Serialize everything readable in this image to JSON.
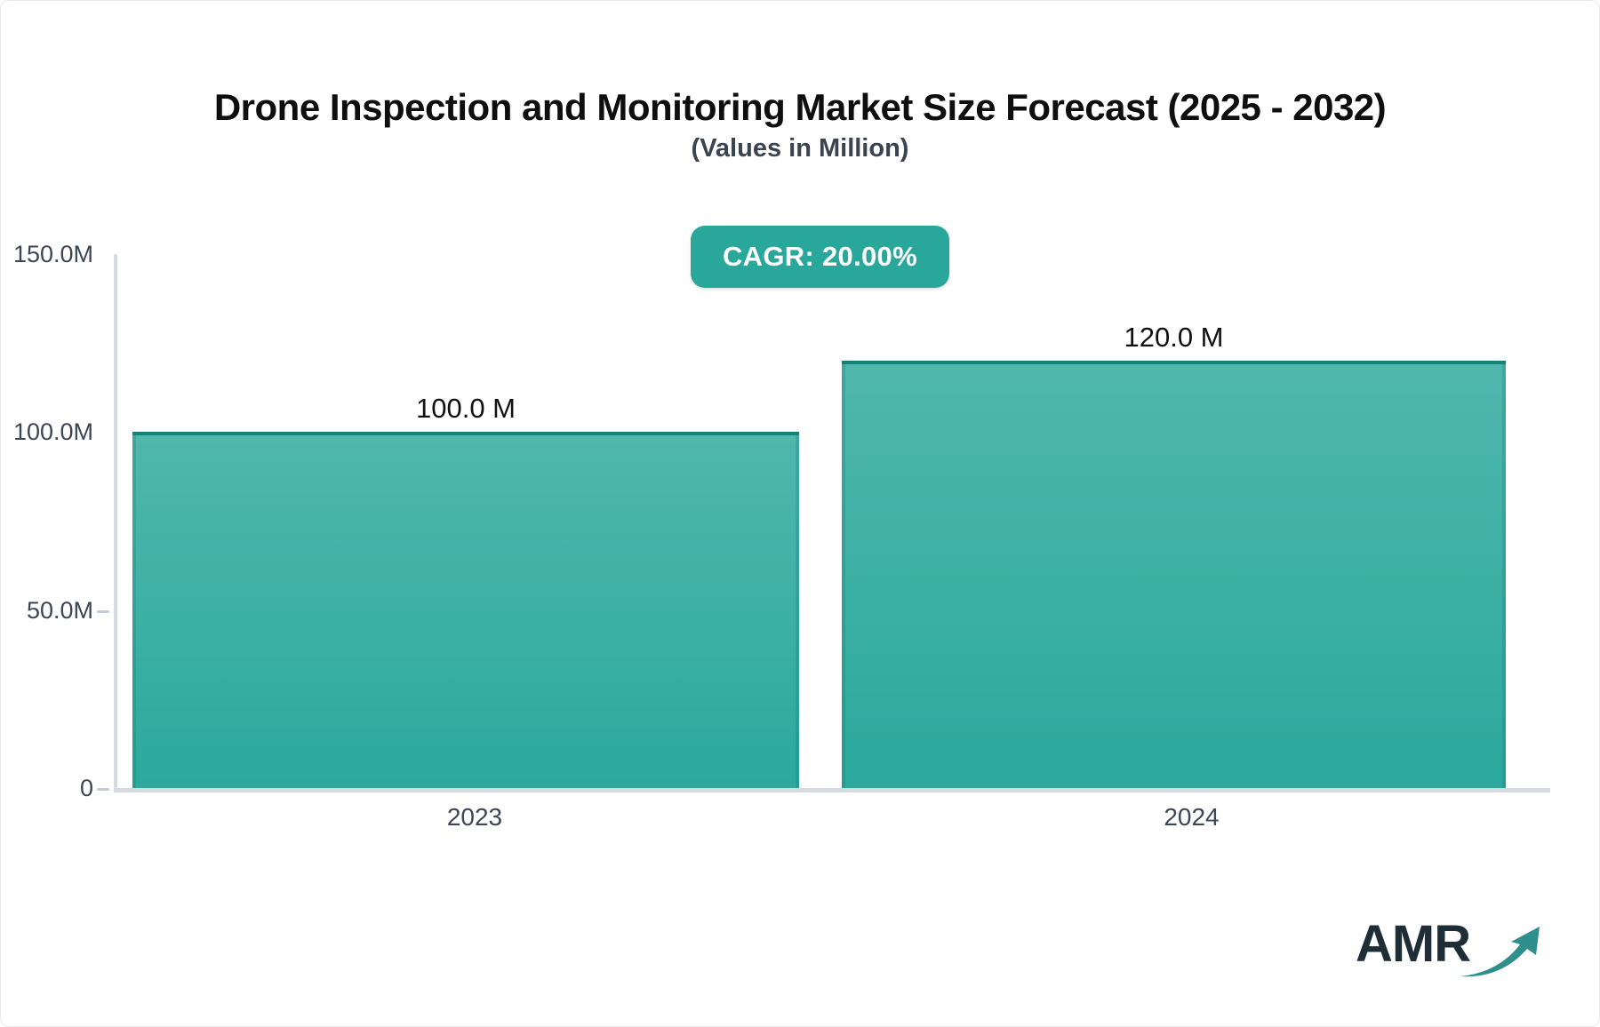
{
  "header": {
    "title": "Drone Inspection and Monitoring Market Size Forecast (2025 - 2032)",
    "subtitle": "(Values in Million)",
    "cagr_badge": "CAGR: 20.00%"
  },
  "chart_data": {
    "type": "bar",
    "title": "Drone Inspection and Monitoring Market Size Forecast (2025 - 2032)",
    "subtitle": "(Values in Million)",
    "categories": [
      "2023",
      "2024"
    ],
    "values": [
      100.0,
      120.0
    ],
    "value_labels": [
      "100.0 M",
      "120.0 M"
    ],
    "unit": "Million",
    "cagr_percent": 20.0,
    "ylim": [
      0,
      150
    ],
    "y_tick_labels": [
      "150.0M",
      "100.0M",
      "50.0M",
      "0"
    ],
    "y_tick_values": [
      150,
      100,
      50,
      0
    ],
    "grid": false,
    "legend_position": "none",
    "bar_gradient_top": "#50b7ad",
    "bar_gradient_bottom": "#2ba99c",
    "bar_border_color": "#168079"
  },
  "branding": {
    "logo_text": "AMR",
    "logo_icon": "growth-arrow-icon"
  },
  "colors": {
    "accent_teal": "#29a79b",
    "axis_line": "#d7dade",
    "label_text": "#3c4655",
    "title_text": "#0e0e0e",
    "logo_text_color": "#1e2d36",
    "logo_arrow_color": "#2e8f8c"
  }
}
